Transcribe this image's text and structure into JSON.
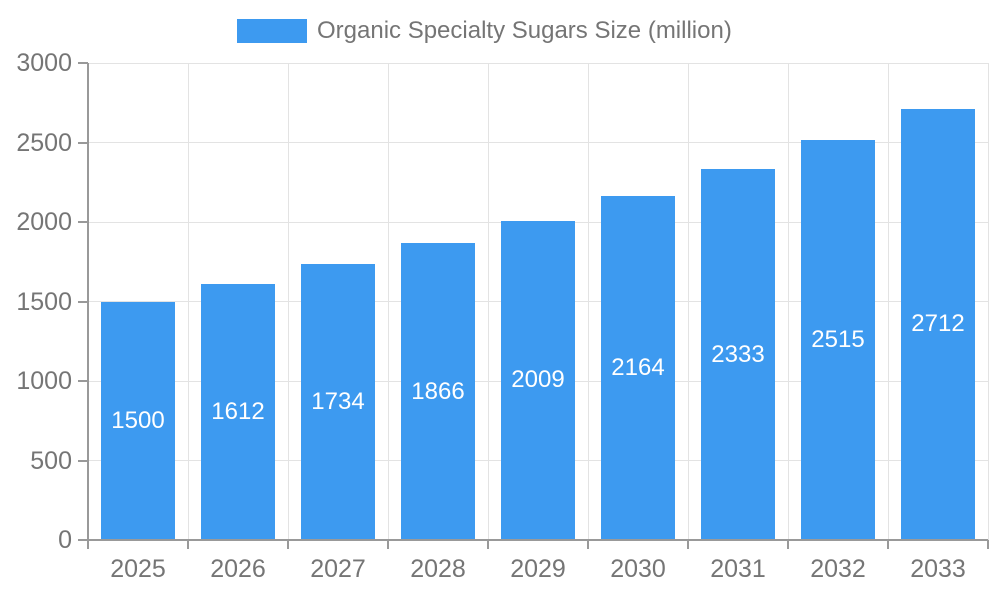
{
  "legend": {
    "label": "Organic Specialty Sugars Size (million)"
  },
  "chart_data": {
    "type": "bar",
    "title": "Organic Specialty Sugars Size (million)",
    "categories": [
      "2025",
      "2026",
      "2027",
      "2028",
      "2029",
      "2030",
      "2031",
      "2032",
      "2033"
    ],
    "values": [
      1500,
      1612,
      1734,
      1866,
      2009,
      2164,
      2333,
      2515,
      2712
    ],
    "xlabel": "",
    "ylabel": "",
    "ylim": [
      0,
      3000
    ],
    "yticks": [
      0,
      500,
      1000,
      1500,
      2000,
      2500,
      3000
    ],
    "legend_position": "top-center",
    "grid": true,
    "value_labels": "inside-center",
    "colors": {
      "bar": "#3D9AF0",
      "axis_text": "#757575",
      "axis_line": "#999999",
      "grid_line": "#e3e3e3",
      "value_label": "#ffffff",
      "background": "#ffffff"
    }
  }
}
